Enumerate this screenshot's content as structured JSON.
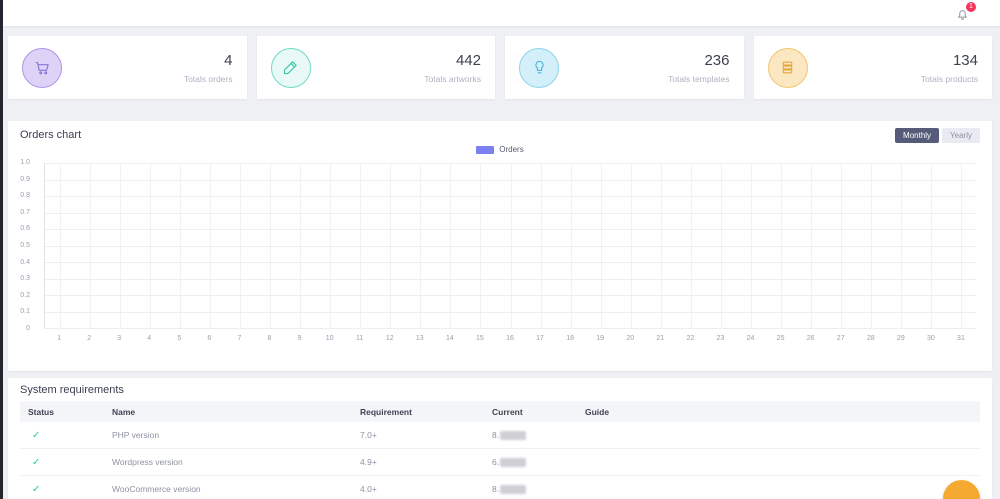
{
  "topbar": {
    "notification_badge": "1"
  },
  "stats": [
    {
      "value": "4",
      "label": "Totals orders",
      "icon": "cart-icon",
      "icon_color": "#8677d6",
      "icon_bg": "#ded3f7",
      "icon_border": "#a995e8"
    },
    {
      "value": "442",
      "label": "Totals artworks",
      "icon": "pen-icon",
      "icon_color": "#35c4ac",
      "icon_bg": "#e9faf6",
      "icon_border": "#6fd9c6"
    },
    {
      "value": "236",
      "label": "Totals templates",
      "icon": "template-icon",
      "icon_color": "#4db6d8",
      "icon_bg": "#d3eff9",
      "icon_border": "#8ed4ea"
    },
    {
      "value": "134",
      "label": "Totals products",
      "icon": "products-icon",
      "icon_color": "#e8a33d",
      "icon_bg": "#fbe8c2",
      "icon_border": "#f2c46d"
    }
  ],
  "orders_chart": {
    "title": "Orders chart",
    "toggle": {
      "options": [
        "Monthly",
        "Yearly"
      ],
      "selected": "Monthly"
    },
    "legend_label": "Orders",
    "legend_color": "#7d80f0"
  },
  "chart_data": {
    "type": "line",
    "title": "Orders chart",
    "x": [
      1,
      2,
      3,
      4,
      5,
      6,
      7,
      8,
      9,
      10,
      11,
      12,
      13,
      14,
      15,
      16,
      17,
      18,
      19,
      20,
      21,
      22,
      23,
      24,
      25,
      26,
      27,
      28,
      29,
      30,
      31
    ],
    "series": [
      {
        "name": "Orders",
        "values": []
      }
    ],
    "ylim": [
      0,
      1.0
    ],
    "ytick_labels": [
      "1.0",
      "0.9",
      "0.8",
      "0.7",
      "0.6",
      "0.5",
      "0.4",
      "0.3",
      "0.2",
      "0.1",
      "0"
    ],
    "grid": true,
    "legend_position": "top"
  },
  "system": {
    "title": "System requirements",
    "columns": [
      "Status",
      "Name",
      "Requirement",
      "Current",
      "Guide"
    ],
    "rows": [
      {
        "status": "ok",
        "name": "PHP version",
        "requirement": "7.0+",
        "current": "8.",
        "current_redacted": true,
        "guide": ""
      },
      {
        "status": "ok",
        "name": "Wordpress version",
        "requirement": "4.9+",
        "current": "6.",
        "current_redacted": true,
        "guide": ""
      },
      {
        "status": "ok",
        "name": "WooCommerce version",
        "requirement": "4.0+",
        "current": "8.",
        "current_redacted": true,
        "guide": ""
      }
    ],
    "check_color": "#2dce89"
  },
  "fab": {
    "color": "#f5a930"
  }
}
